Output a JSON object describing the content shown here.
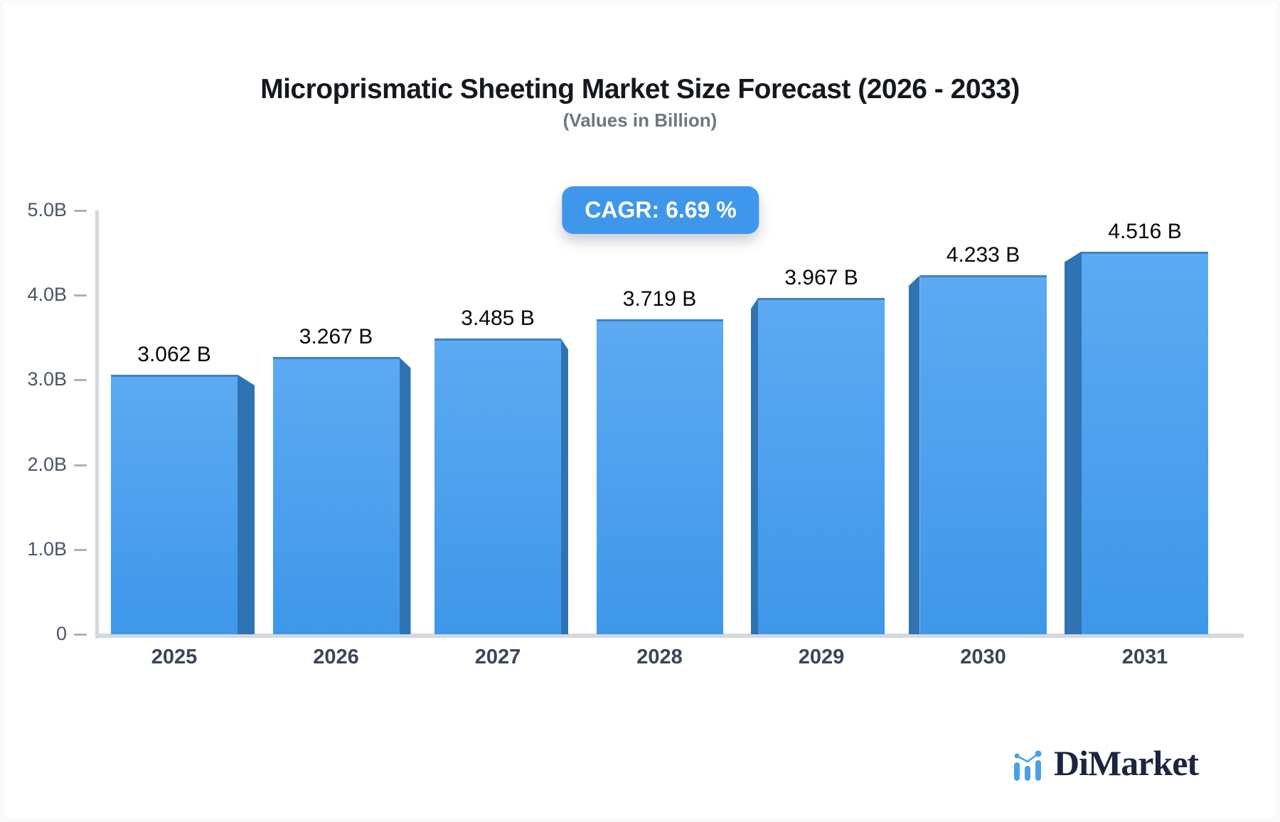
{
  "header": {
    "title": "Microprismatic Sheeting Market Size Forecast (2026 - 2033)",
    "subtitle": "(Values in Billion)",
    "cagr_badge": "CAGR: 6.69 %"
  },
  "chart_data": {
    "type": "bar",
    "title": "Microprismatic Sheeting Market Size Forecast (2026 - 2033)",
    "subtitle": "(Values in Billion)",
    "cagr": "6.69 %",
    "categories": [
      "2025",
      "2026",
      "2027",
      "2028",
      "2029",
      "2030",
      "2031"
    ],
    "values": [
      3.062,
      3.267,
      3.485,
      3.719,
      3.967,
      4.233,
      4.516
    ],
    "value_labels": [
      "3.062 B",
      "3.267 B",
      "3.485 B",
      "3.719 B",
      "3.967 B",
      "4.233 B",
      "4.516 B"
    ],
    "unit": "Billion",
    "xlabel": "",
    "ylabel": "",
    "ylim": [
      0,
      5
    ],
    "y_tick_values": [
      0,
      1,
      2,
      3,
      4,
      5
    ],
    "y_ticks": [
      "0",
      "1.0B",
      "2.0B",
      "3.0B",
      "4.0B",
      "5.0B"
    ],
    "grid": "off",
    "legend": "none",
    "bar_style": "3d-perspective-center",
    "colors": {
      "bar_top": "#5caaf2",
      "bar_bottom": "#3e97e9",
      "bar_side": "#2f73b3",
      "bar_top_edge": "#3e82c6",
      "badge_bg": "#3f97eb",
      "badge_text": "#ffffff",
      "axis": "#d4d9df",
      "tick_dash": "#a9b1bb",
      "tick_label": "#4a5568",
      "category_label": "#39455a",
      "value_label": "#070707"
    }
  },
  "footer": {
    "logo_text": "DiMarket",
    "logo_icon": "bar-line-chart-icon",
    "logo_text_color": "#1b2540",
    "logo_accent": "#4aa0e8"
  }
}
